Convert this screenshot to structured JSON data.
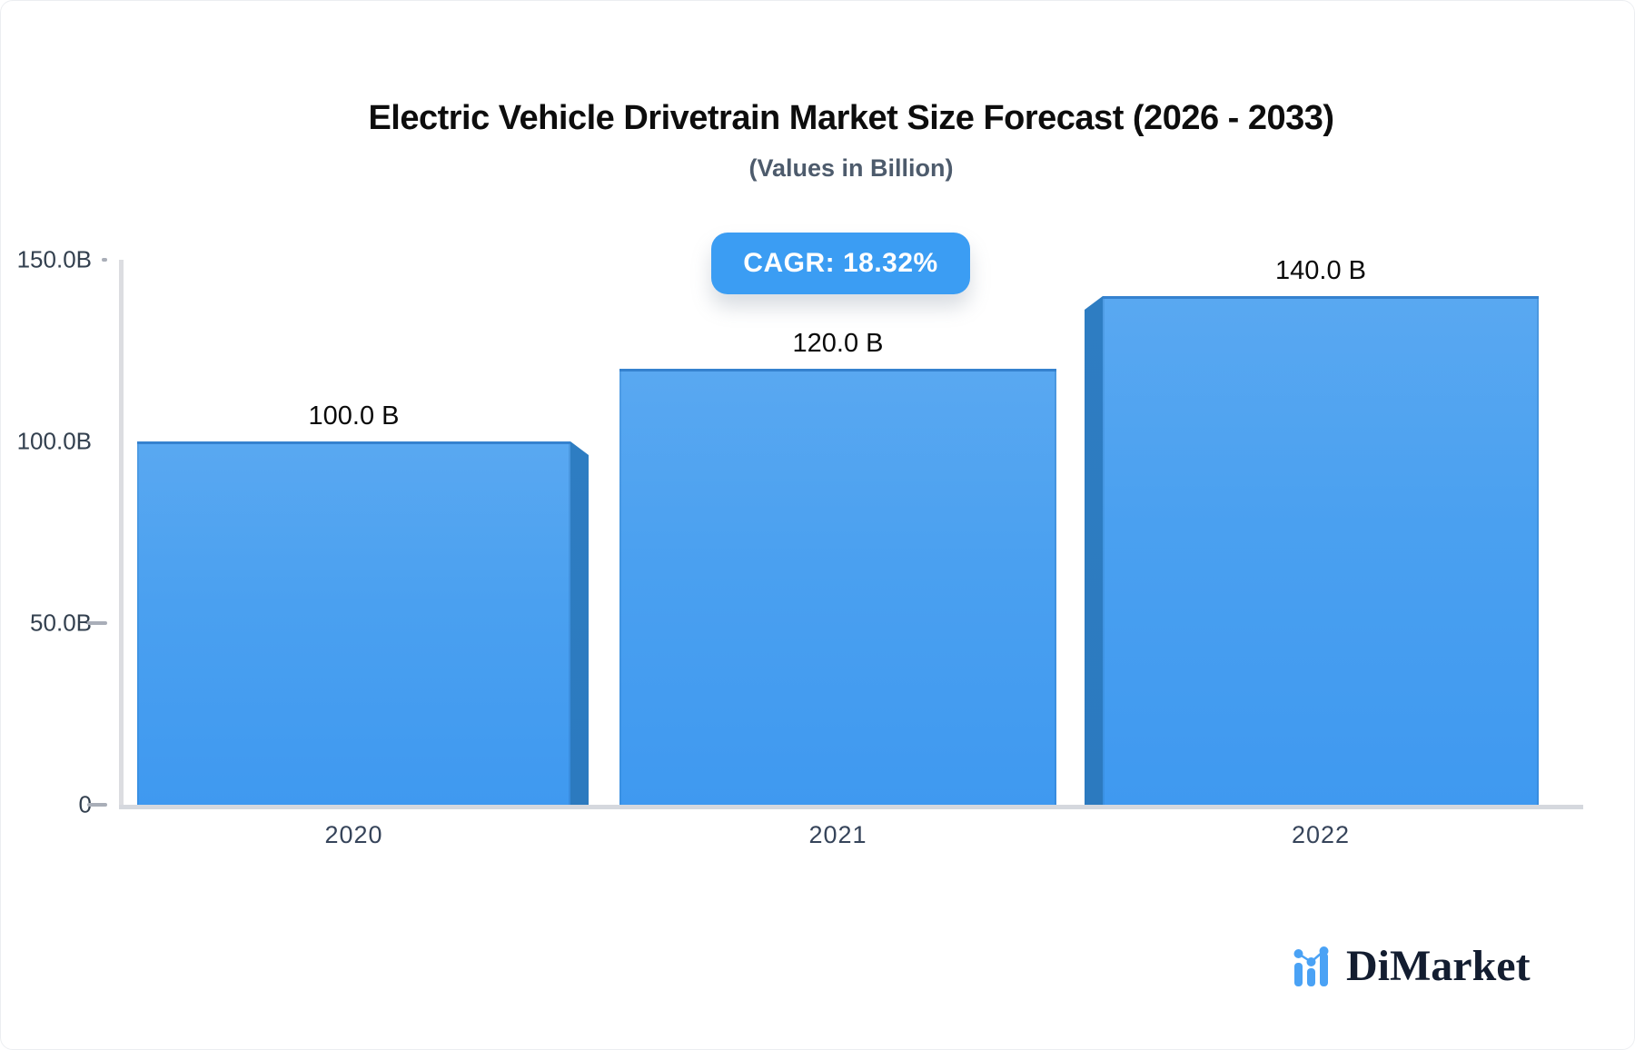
{
  "header": {
    "title": "Electric Vehicle Drivetrain Market Size Forecast (2026 - 2033)",
    "subtitle": "(Values in Billion)"
  },
  "badge": {
    "text": "CAGR: 18.32%"
  },
  "chart_data": {
    "type": "bar",
    "categories": [
      "2020",
      "2021",
      "2022"
    ],
    "values": [
      100,
      120,
      140
    ],
    "value_labels": [
      "100.0 B",
      "120.0 B",
      "140.0 B"
    ],
    "y_ticks": [
      {
        "label": "150.0B",
        "value": 150
      },
      {
        "label": "100.0B",
        "value": 100
      },
      {
        "label": "50.0B",
        "value": 50
      },
      {
        "label": "0",
        "value": 0
      }
    ],
    "ylim": [
      0,
      150
    ],
    "title": "Electric Vehicle Drivetrain Market Size Forecast (2026 - 2033)",
    "subtitle": "(Values in Billion)",
    "grid": "off",
    "legend": "none",
    "bar_style": "3d-extruded"
  },
  "colors": {
    "badge_bg": "#3b9df3",
    "bar_top": "#59a8f1",
    "bar_bottom": "#3f99f0",
    "bar_side": "#2d7cc3",
    "axis_line": "#dcdde1",
    "logo_blue": "#4aa2f5",
    "logo_text": "#131d30"
  },
  "logo": {
    "text": "DiMarket"
  }
}
